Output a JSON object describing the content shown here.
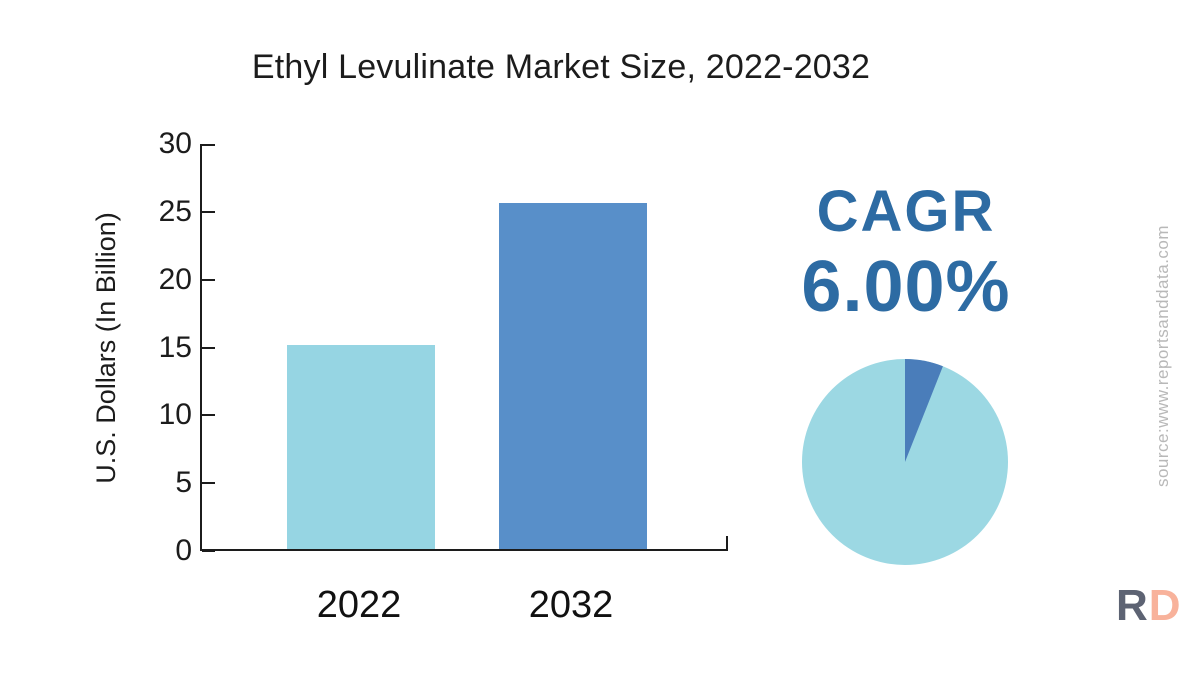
{
  "title": "Ethyl Levulinate Market Size, 2022-2032",
  "source": "source:www.reportsanddata.com",
  "logo": {
    "r": "R",
    "d": "D"
  },
  "cagr": {
    "label": "CAGR",
    "value": "6.00%"
  },
  "colors": {
    "bar_2022": "#96d5e3",
    "bar_2032": "#588fc9",
    "pie_main": "#9cd8e3",
    "pie_slice": "#4a7dba",
    "cagr_text": "#2d6ba3",
    "axis": "#1c1c1c",
    "source_text": "#b8b8b8",
    "logo_r": "#5d6373",
    "logo_d": "#f8b29b"
  },
  "chart_data": [
    {
      "type": "bar",
      "title": "Ethyl Levulinate Market Size, 2022-2032",
      "categories": [
        "2022",
        "2032"
      ],
      "values": [
        15.0,
        25.5
      ],
      "bar_colors": [
        "#96d5e3",
        "#588fc9"
      ],
      "xlabel": "",
      "ylabel": "U.S. Dollars (In Billion)",
      "ylim": [
        0,
        30
      ],
      "yticks": [
        0,
        5,
        10,
        15,
        20,
        25,
        30
      ],
      "grid": false,
      "legend": false
    },
    {
      "type": "pie",
      "labels": [
        "CAGR 6.00%",
        "remainder"
      ],
      "values": [
        6,
        94
      ],
      "slice_colors": [
        "#4a7dba",
        "#9cd8e3"
      ],
      "start_angle_deg": -90,
      "direction": "clockwise",
      "legend": false
    }
  ]
}
